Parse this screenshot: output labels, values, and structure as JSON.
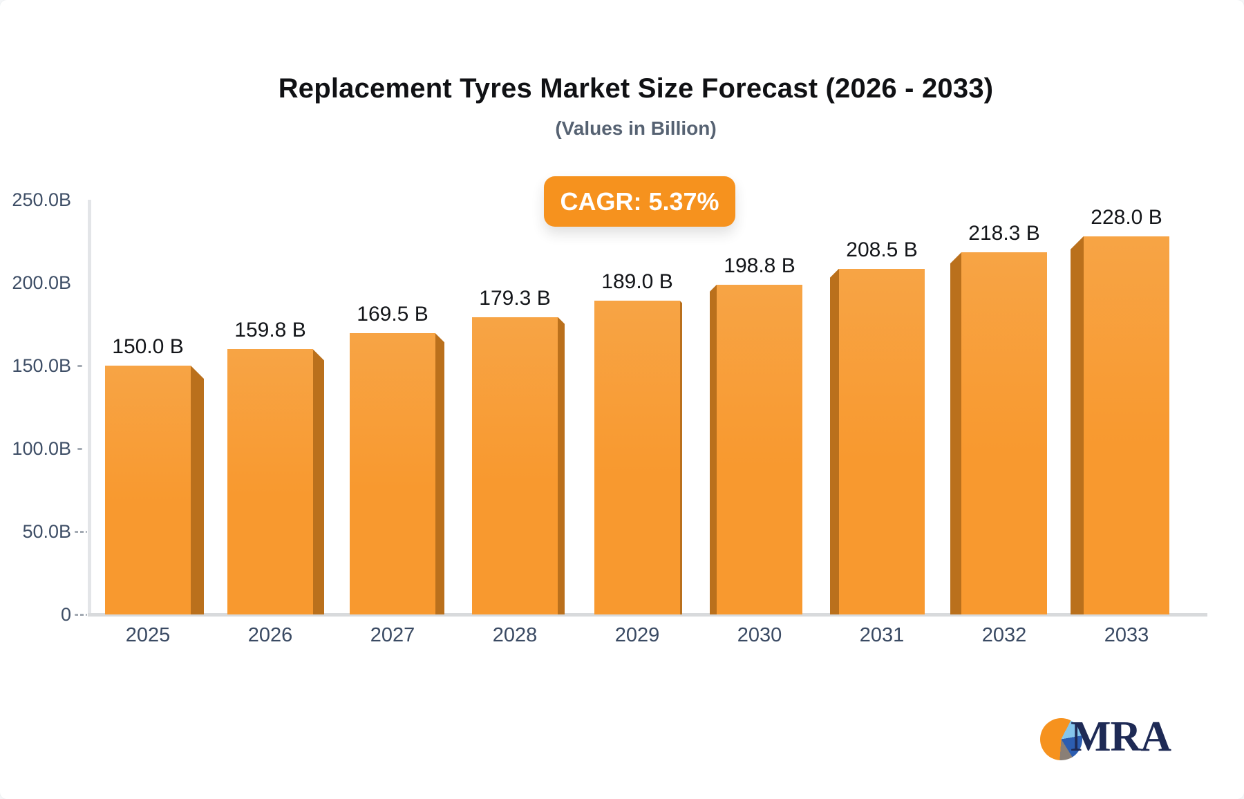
{
  "title": "Replacement Tyres Market Size Forecast (2026 - 2033)",
  "subtitle": "(Values in Billion)",
  "cagr_badge_label": "CAGR: 5.37%",
  "logo": {
    "text": "MRA"
  },
  "chart_data": {
    "type": "bar",
    "title": "Replacement Tyres Market Size Forecast (2026 - 2033)",
    "subtitle": "(Values in Billion)",
    "cagr_percent": 5.37,
    "unit": "Billion",
    "categories": [
      "2025",
      "2026",
      "2027",
      "2028",
      "2029",
      "2030",
      "2031",
      "2032",
      "2033"
    ],
    "values": [
      150.0,
      159.8,
      169.5,
      179.3,
      189.0,
      198.8,
      208.5,
      218.3,
      228.0
    ],
    "bar_labels": [
      "150.0 B",
      "159.8 B",
      "169.5 B",
      "179.3 B",
      "189.0 B",
      "198.8 B",
      "208.5 B",
      "218.3 B",
      "228.0 B"
    ],
    "xlabel": "",
    "ylabel": "",
    "ylim": [
      0,
      250
    ],
    "y_tick_step": 50,
    "y_ticks": [
      {
        "label": "250.0B",
        "value": 250,
        "dash": "none"
      },
      {
        "label": "200.0B",
        "value": 200,
        "dash": "none"
      },
      {
        "label": "150.0B",
        "value": 150,
        "dash": "short"
      },
      {
        "label": "100.0B",
        "value": 100,
        "dash": "short"
      },
      {
        "label": "50.0B",
        "value": 50,
        "dash": "long"
      },
      {
        "label": "0",
        "value": 0,
        "dash": "long"
      }
    ],
    "legend": "none",
    "grid": "off",
    "colors": {
      "bar_face": "#F8992F",
      "bar_face_light": "#F7A445",
      "bar_side": "#BA701C",
      "badge_bg": "#F6921E",
      "axis_line": "#E3E5E8",
      "baseline": "#D8DADC",
      "tick_text": "#3E4E66",
      "bar_label_text": "#131519",
      "title_text": "#101114"
    }
  }
}
